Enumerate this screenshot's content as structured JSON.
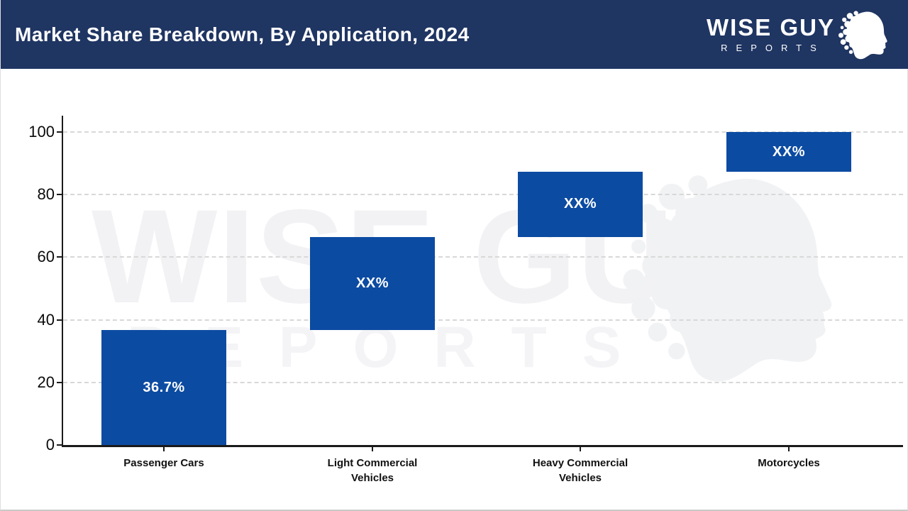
{
  "header": {
    "title": "Market Share Breakdown, By Application, 2024",
    "logo": {
      "line1": "WISE GUY",
      "line2": "REPORTS"
    }
  },
  "watermark": {
    "line1": "WISE GUY",
    "line2": "REPORTS"
  },
  "chart_data": {
    "type": "bar",
    "variant": "waterfall",
    "title": "Market Share Breakdown, By Application, 2024",
    "categories": [
      "Passenger Cars",
      "Light Commercial Vehicles",
      "Heavy Commercial Vehicles",
      "Motorcycles"
    ],
    "segments": [
      {
        "category": "Passenger Cars",
        "start": 0,
        "end": 36.7,
        "label": "36.7%"
      },
      {
        "category": "Light Commercial Vehicles",
        "start": 36.7,
        "end": 66.5,
        "label": "XX%"
      },
      {
        "category": "Heavy Commercial Vehicles",
        "start": 66.5,
        "end": 87.3,
        "label": "XX%"
      },
      {
        "category": "Motorcycles",
        "start": 87.3,
        "end": 100,
        "label": "XX%"
      }
    ],
    "yticks": [
      0,
      20,
      40,
      60,
      80,
      100
    ],
    "ylim": [
      0,
      105
    ],
    "xlabel": "",
    "ylabel": "",
    "grid": "dashed-horizontal",
    "legend": "none"
  },
  "colors": {
    "header_bg": "#1f3562",
    "bar": "#0c4ba2",
    "grid": "#d8d8d8",
    "axis": "#1a1a1a",
    "watermark": "#f2f2f5",
    "bar_label": "#ffffff",
    "title_text": "#ffffff"
  }
}
